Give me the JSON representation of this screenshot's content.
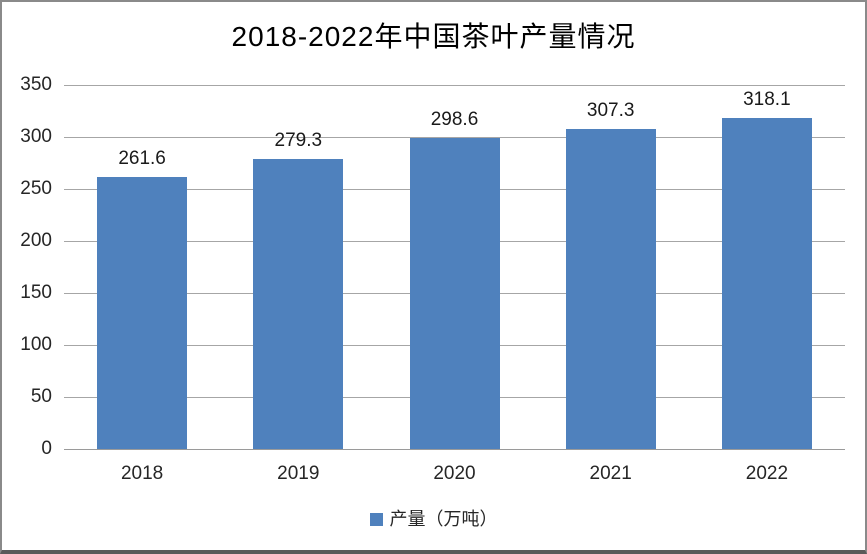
{
  "chart_data": {
    "type": "bar",
    "title": "2018-2022年中国茶叶产量情况",
    "categories": [
      "2018",
      "2019",
      "2020",
      "2021",
      "2022"
    ],
    "series": [
      {
        "name": "产量（万吨）",
        "values": [
          261.6,
          279.3,
          298.6,
          307.3,
          318.1
        ]
      }
    ],
    "value_labels": [
      "261.6",
      "279.3",
      "298.6",
      "307.3",
      "318.1"
    ],
    "xlabel": "",
    "ylabel": "",
    "ylim": [
      0,
      350
    ],
    "yticks": [
      0,
      50,
      100,
      150,
      200,
      250,
      300,
      350
    ],
    "grid": true,
    "legend_position": "bottom",
    "bar_color": "#4F81BD",
    "gridline_color": "#A6A6A6",
    "text_color": "#262626",
    "frame_border_color": "#8A8A8A"
  }
}
